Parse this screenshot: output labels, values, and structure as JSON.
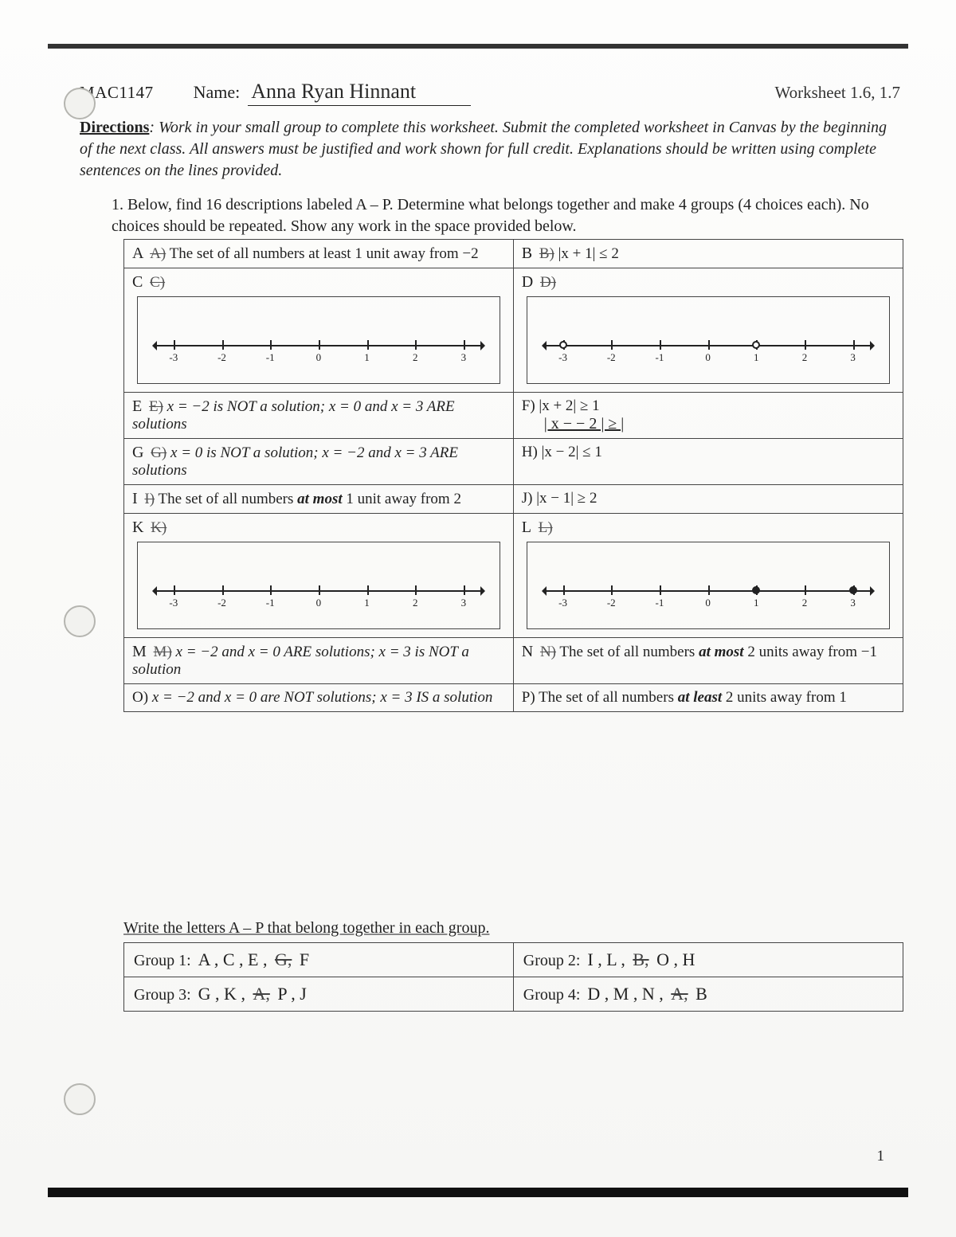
{
  "header": {
    "course": "MAC1147",
    "name_label": "Name:",
    "name_value": "Anna Ryan Hinnant",
    "worksheet_label": "Worksheet 1.6, 1.7"
  },
  "directions": {
    "head": "Directions",
    "body": ": Work in your small group to complete this worksheet. Submit the completed worksheet in Canvas by the beginning of the next class. All answers must be justified and work shown for full credit. Explanations should be written using complete sentences on the lines provided."
  },
  "q1": {
    "num": "1.",
    "text": "Below, find 16 descriptions labeled A – P.  Determine what belongs together and make 4 groups (4 choices each). No choices should be repeated. Show any work in the space provided below."
  },
  "items": {
    "A_hand": "A",
    "A_text": "The set of all numbers at least 1 unit away from −2",
    "B_hand": "B",
    "B_text": "|x + 1| ≤ 2",
    "C_hand": "C",
    "D_hand": "D",
    "E_hand": "E",
    "E_text": "x = −2 is NOT a solution; x = 0 and x = 3 ARE solutions",
    "F_label": "F)",
    "F_text": "|x + 2| ≥ 1",
    "F_sub": "| x − − 2 | ≥ |",
    "G_hand": "G",
    "G_text": "x = 0 is NOT a solution; x = −2 and x = 3 ARE solutions",
    "H_label": "H)",
    "H_text": "|x − 2| ≤ 1",
    "I_hand": "I",
    "I_text": "The set of all numbers at most 1 unit away from 2",
    "J_label": "J)",
    "J_text": "|x − 1| ≥ 2",
    "K_hand": "K",
    "L_hand": "L",
    "M_hand": "M",
    "M_text": "x = −2 and x = 0 ARE solutions; x = 3 is NOT a solution",
    "N_hand": "N",
    "N_text": "The set of all numbers at most 2 units away from −1",
    "O_label": "O)",
    "O_text": "x = −2 and x = 0 are NOT solutions; x = 3 IS a solution",
    "P_label": "P)",
    "P_text": "The set of all numbers at least 2 units away from 1"
  },
  "ticks": [
    "-3",
    "-2",
    "-1",
    "0",
    "1",
    "2",
    "3"
  ],
  "groups_prompt": "Write the letters A – P that belong together in each group.",
  "groups": {
    "g1_label": "Group 1:",
    "g1_val": "A , C , E , ",
    "g1_scratch": "G,",
    "g1_val2": " F",
    "g2_label": "Group 2:",
    "g2_val": "I , L , ",
    "g2_scratch": "B,",
    "g2_val2": " O , H",
    "g3_label": "Group 3:",
    "g3_val": "G , K , ",
    "g3_scratch": "A,",
    "g3_val2": " P , J",
    "g4_label": "Group 4:",
    "g4_val": "D , M , N , ",
    "g4_scratch": "A,",
    "g4_val2": " B"
  },
  "page_num": "1"
}
